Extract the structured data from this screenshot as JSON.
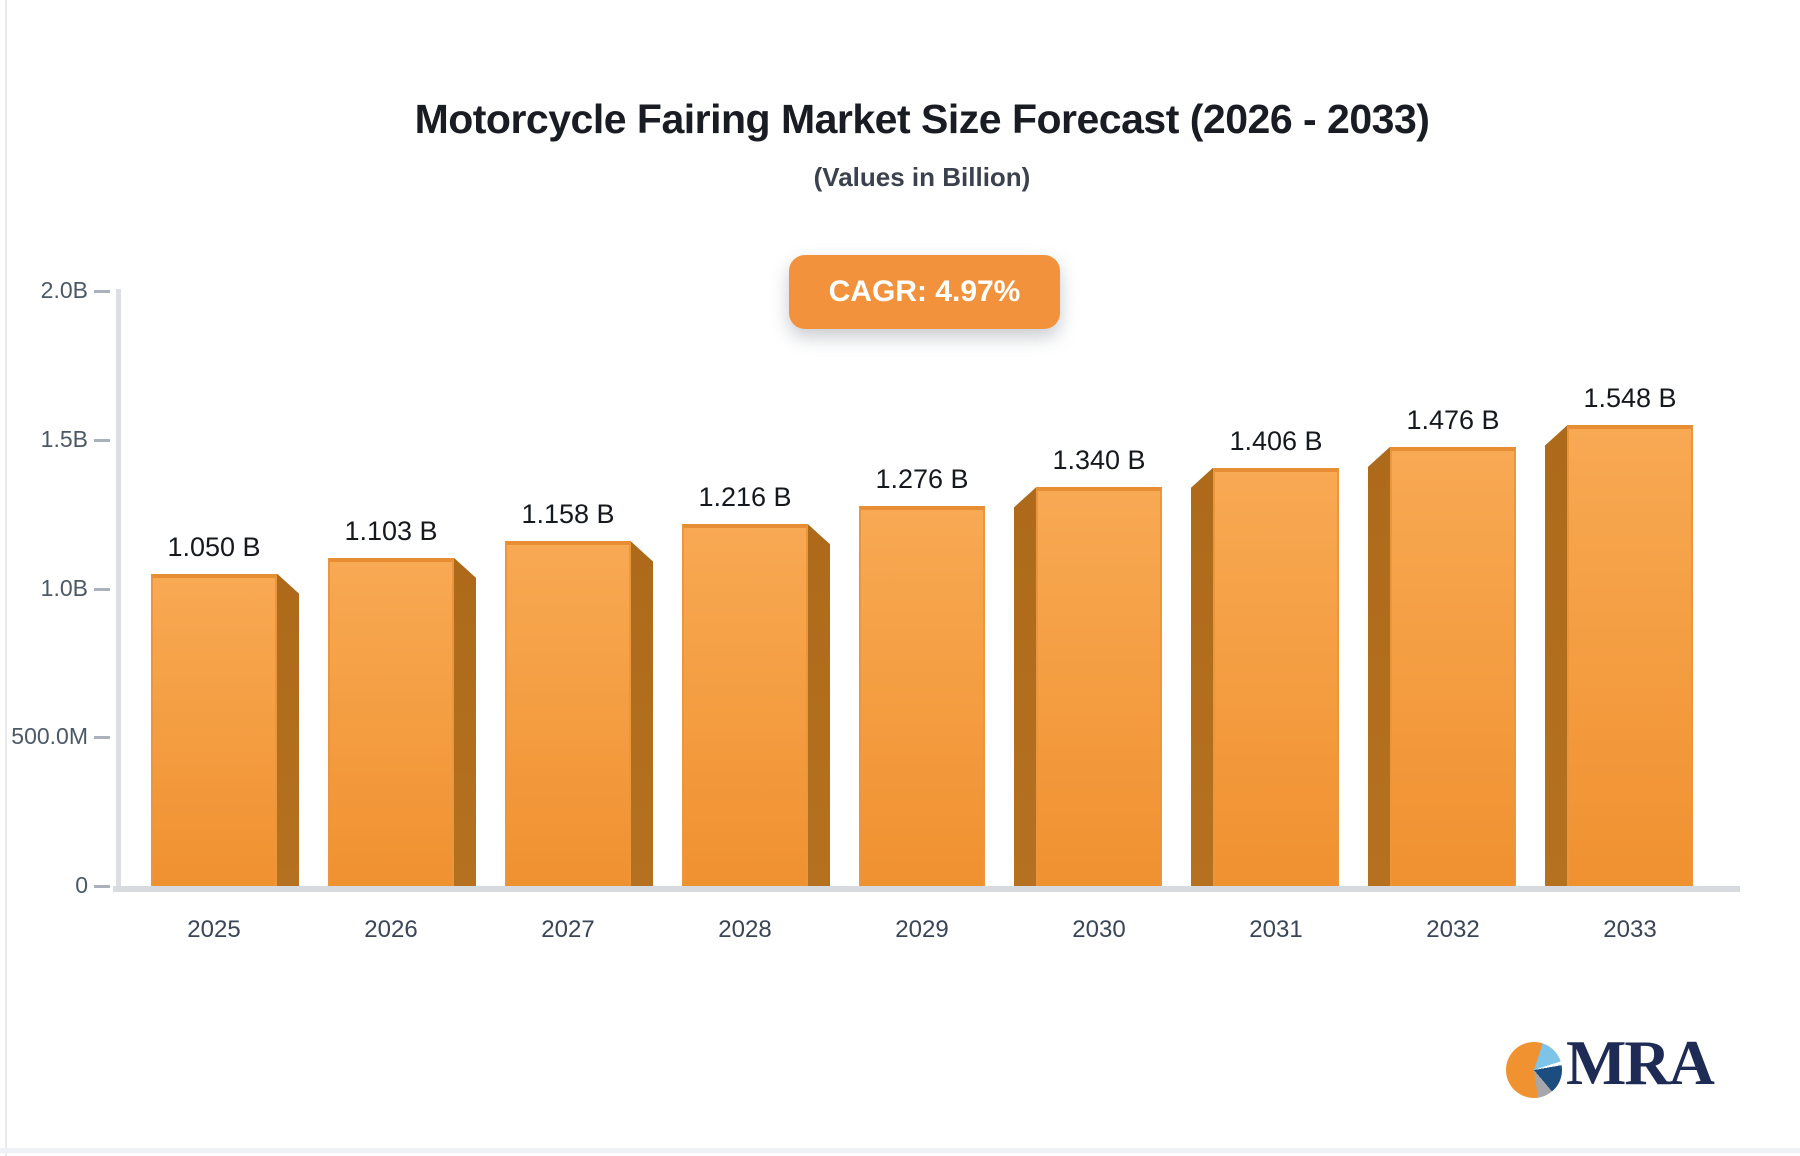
{
  "page": {
    "title": "Motorcycle Fairing Market Size Forecast (2026 - 2033)",
    "subtitle": "(Values in Billion)",
    "cagr_badge": "CAGR: 4.97%",
    "logo_text": "MRA"
  },
  "colors": {
    "bar_face_top": "#f8a953",
    "bar_face_bottom": "#f09130",
    "bar_outline": "#e78d33",
    "bar_side_panel": "#b06b1c",
    "badge_bg": "#f2923c",
    "axis_gray": "#d7dade",
    "tick_label_gray": "#4b5866",
    "value_label_dark": "#15181d",
    "logo_navy": "#1d2b55",
    "logo_orange": "#f0922f",
    "logo_lightblue": "#7ec3e8",
    "logo_slice_blue": "#1b4d7e",
    "logo_slice_gray": "#a7a7ab"
  },
  "chart_data": {
    "type": "bar",
    "title": "Motorcycle Fairing Market Size Forecast (2026 - 2033)",
    "subtitle": "(Values in Billion)",
    "cagr": "CAGR: 4.97%",
    "categories": [
      "2025",
      "2026",
      "2027",
      "2028",
      "2029",
      "2030",
      "2031",
      "2032",
      "2033"
    ],
    "values": [
      1.05,
      1.103,
      1.158,
      1.216,
      1.276,
      1.34,
      1.406,
      1.476,
      1.548
    ],
    "value_labels": [
      "1.050 B",
      "1.103 B",
      "1.158 B",
      "1.216 B",
      "1.276 B",
      "1.340 B",
      "1.406 B",
      "1.476 B",
      "1.548 B"
    ],
    "xlabel": "",
    "ylabel": "",
    "ylim": [
      0,
      2.0
    ],
    "yticks": [
      {
        "label": "2.0B",
        "value": 2.0
      },
      {
        "label": "1.5B",
        "value": 1.5
      },
      {
        "label": "1.0B",
        "value": 1.0
      },
      {
        "label": "500.0M",
        "value": 0.5
      },
      {
        "label": "0",
        "value": 0
      }
    ],
    "grid": false,
    "legend": false
  }
}
